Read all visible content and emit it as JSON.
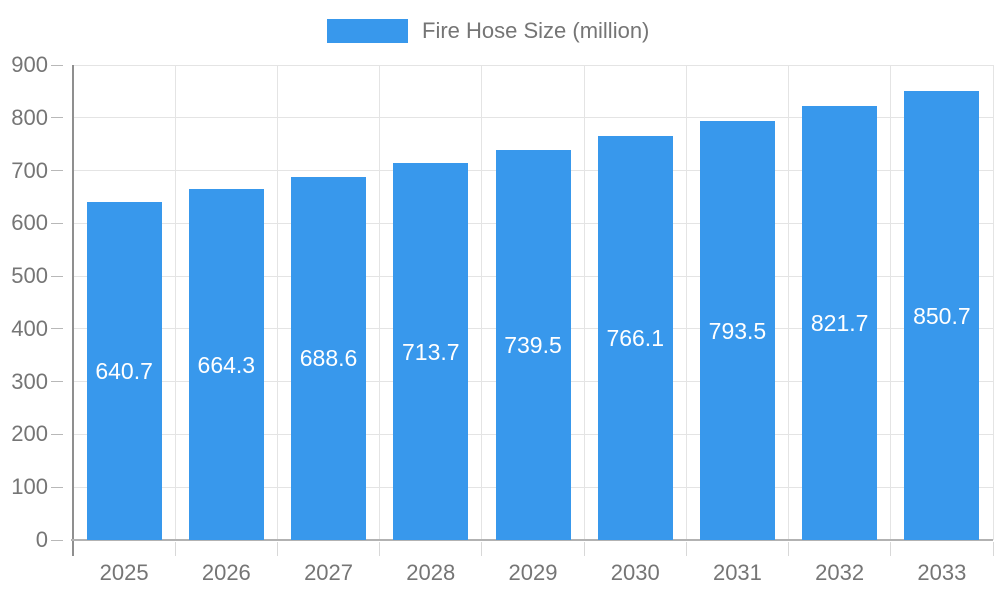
{
  "chart_data": {
    "type": "bar",
    "title": "",
    "legend": "Fire Hose Size (million)",
    "legend_position": "top",
    "categories": [
      "2025",
      "2026",
      "2027",
      "2028",
      "2029",
      "2030",
      "2031",
      "2032",
      "2033"
    ],
    "series": [
      {
        "name": "Fire Hose Size (million)",
        "values": [
          640.7,
          664.3,
          688.6,
          713.7,
          739.5,
          766.1,
          793.5,
          821.7,
          850.7
        ]
      }
    ],
    "bar_value_labels": [
      "640.7",
      "664.3",
      "688.6",
      "713.7",
      "739.5",
      "766.1",
      "793.5",
      "821.7",
      "850.7"
    ],
    "xlabel": "",
    "ylabel": "",
    "ylim": [
      0,
      900
    ],
    "ytick_step": 100,
    "ytick_labels": [
      "0",
      "100",
      "200",
      "300",
      "400",
      "500",
      "600",
      "700",
      "800",
      "900"
    ],
    "grid": true,
    "colors": {
      "bar": "#3898ec",
      "bar_label_text": "#ffffff",
      "axis_text": "#757575",
      "grid_line": "#e4e4e4",
      "y_axis_line": "#8f8f8f",
      "x_axis_line": "#b2b2b2"
    }
  }
}
